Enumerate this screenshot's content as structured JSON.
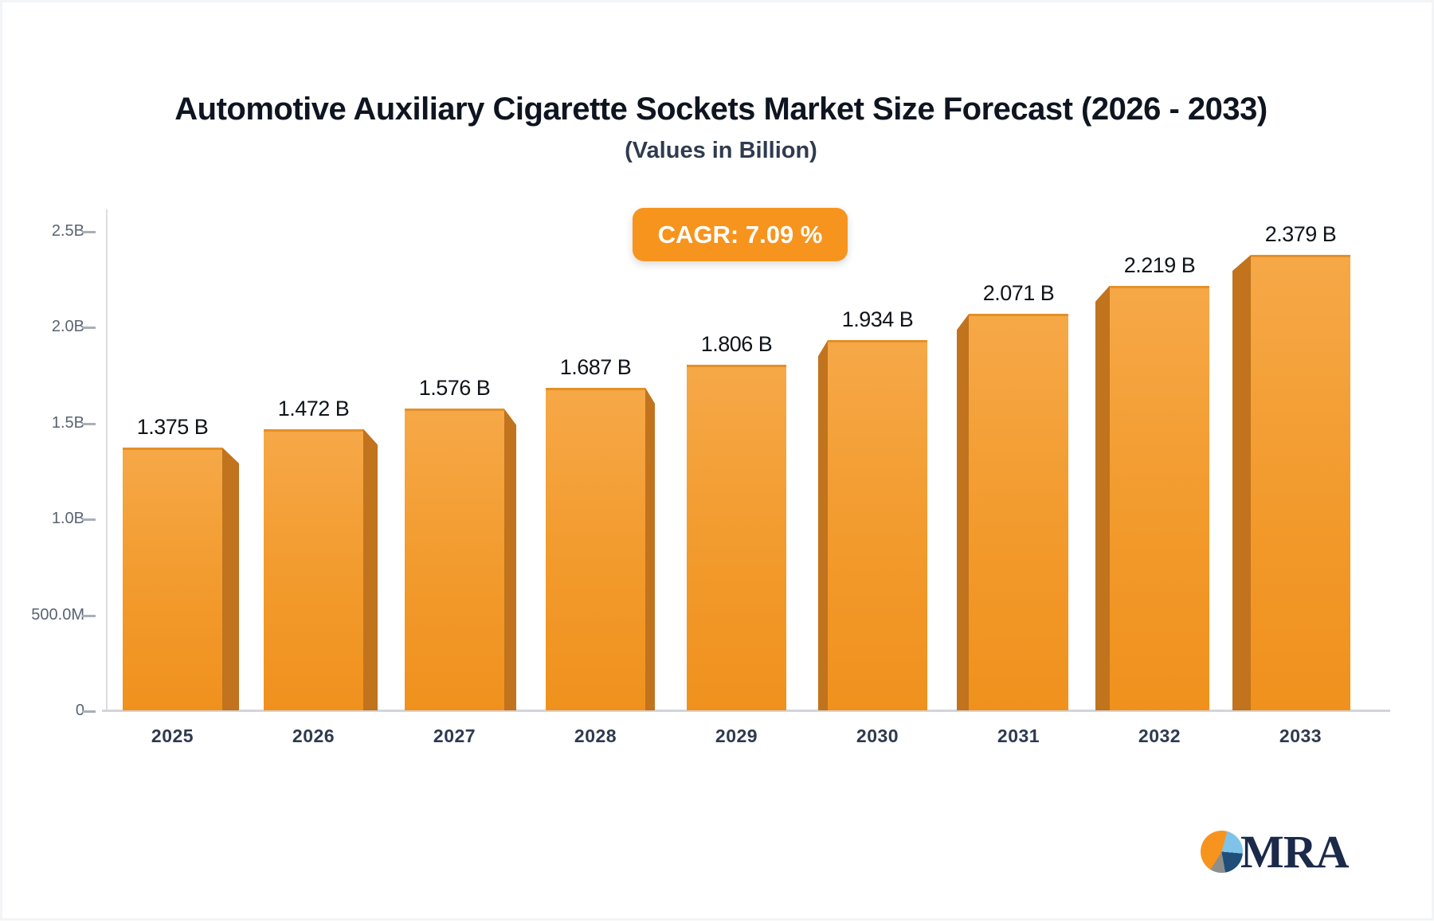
{
  "header": {
    "title": "Automotive Auxiliary Cigarette Sockets Market Size Forecast (2026 - 2033)",
    "subtitle": "(Values in Billion)"
  },
  "badge": {
    "label": "CAGR: 7.09 %",
    "bg_color": "#F7941E"
  },
  "chart_data": {
    "type": "bar",
    "title": "Automotive Auxiliary Cigarette Sockets Market Size Forecast (2026 - 2033)",
    "subtitle": "(Values in Billion)",
    "cagr_percent": 7.09,
    "categories": [
      "2025",
      "2026",
      "2027",
      "2028",
      "2029",
      "2030",
      "2031",
      "2032",
      "2033"
    ],
    "values": [
      1.375,
      1.472,
      1.576,
      1.687,
      1.806,
      1.934,
      2.071,
      2.219,
      2.379
    ],
    "value_labels": [
      "1.375 B",
      "1.472 B",
      "1.576 B",
      "1.687 B",
      "1.806 B",
      "1.934 B",
      "2.071 B",
      "2.219 B",
      "2.379 B"
    ],
    "unit": "Billion",
    "xlabel": "",
    "ylabel": "",
    "ylim": [
      0,
      2.5
    ],
    "yticks": [
      {
        "label": "2.5B",
        "value": 2.5
      },
      {
        "label": "2.0B",
        "value": 2.0
      },
      {
        "label": "1.5B",
        "value": 1.5
      },
      {
        "label": "1.0B",
        "value": 1.0
      },
      {
        "label": "500.0M",
        "value": 0.5
      },
      {
        "label": "0",
        "value": 0
      }
    ],
    "grid": false,
    "legend": false,
    "bar_style": "3d-perspective-center-vanishing",
    "colors": {
      "bar_gradient_top": "#F6A847",
      "bar_gradient_bottom": "#F0911D",
      "bar_side_face": "#C1731D",
      "axis_line": "#D2D5DA",
      "tick_text": "#5A6372",
      "year_text": "#2E3A4E",
      "value_text": "#10141A"
    }
  },
  "logo": {
    "text": "MRA",
    "text_color": "#1B2A4A",
    "pie_slice_colors": {
      "orange": "#F7941E",
      "light_blue": "#7FC4E8",
      "navy": "#1F4E79",
      "gray": "#8E8E8E"
    }
  }
}
